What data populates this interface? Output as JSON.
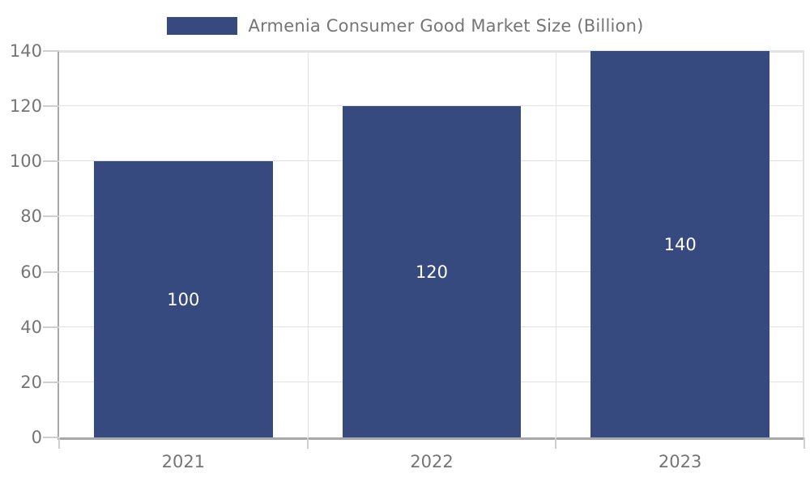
{
  "chart_data": {
    "type": "bar",
    "title": "Armenia Consumer Good Market Size (Billion)",
    "legend": {
      "entries": [
        "Armenia Consumer Good Market Size (Billion)"
      ],
      "position": "top-center"
    },
    "categories": [
      "2021",
      "2022",
      "2023"
    ],
    "values": [
      100,
      120,
      140
    ],
    "bar_labels": [
      "100",
      "120",
      "140"
    ],
    "xlabel": "",
    "ylabel": "",
    "yticks": [
      0,
      20,
      40,
      60,
      80,
      100,
      120,
      140
    ],
    "ylim": [
      0,
      140
    ],
    "grid": true,
    "colors": {
      "bar": "#364a7f",
      "bar_label_text": "#ffffff",
      "gridline": "#e2e2e2",
      "axis_line": "#a8a8a8",
      "tick_mark": "#cfcfcf",
      "tick_text": "#757575",
      "background": "#ffffff"
    }
  }
}
